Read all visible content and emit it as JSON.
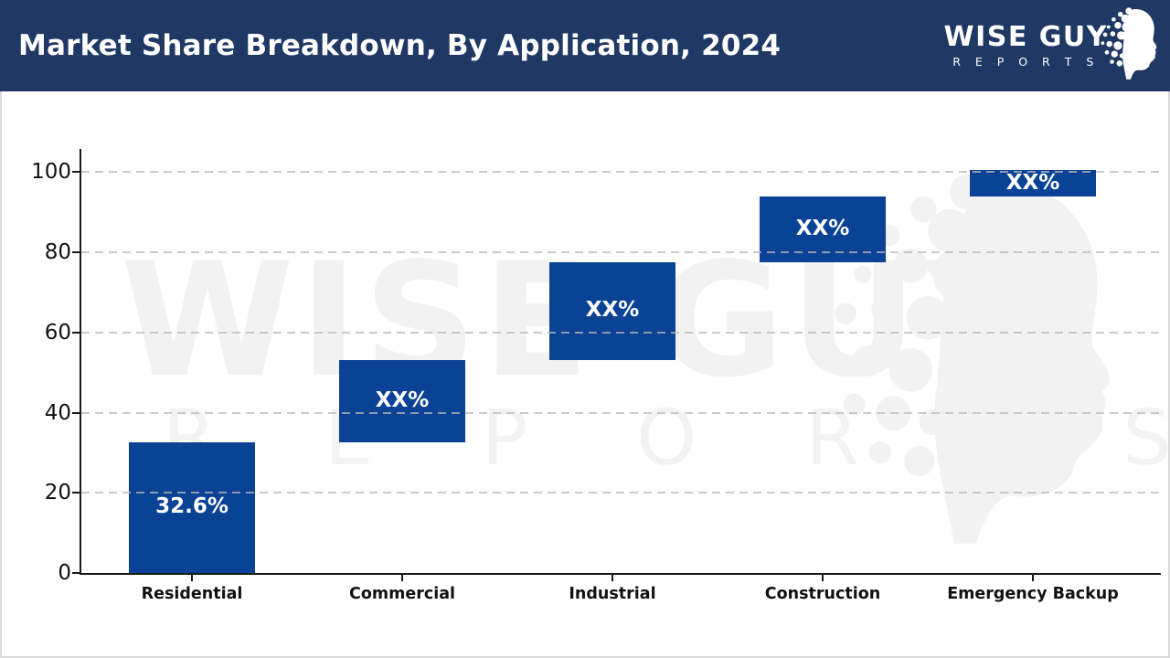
{
  "page": {
    "background": "#ffffff",
    "border_color": "#d9d9d9"
  },
  "header": {
    "background": "#1f3864",
    "title": "Market Share Breakdown, By Application, 2024",
    "logo": {
      "wordmark": "WISE GUY",
      "reports": "R E P O R T S"
    }
  },
  "watermark": {
    "wordmark": "WISE GUY",
    "reports": "R E P O R T S"
  },
  "chart_data": {
    "type": "bar",
    "variant": "waterfall-floating-segments",
    "title": "Market Share Breakdown, By Application, 2024",
    "categories": [
      "Residential",
      "Commercial",
      "Industrial",
      "Construction",
      "Emergency Backup"
    ],
    "segments": [
      {
        "category": "Residential",
        "start": 0,
        "end": 32.6,
        "label": "32.6%"
      },
      {
        "category": "Commercial",
        "start": 32.6,
        "end": 53.2,
        "label": "XX%"
      },
      {
        "category": "Industrial",
        "start": 53.2,
        "end": 77.6,
        "label": "XX%"
      },
      {
        "category": "Construction",
        "start": 77.6,
        "end": 93.8,
        "label": "XX%"
      },
      {
        "category": "Emergency Backup",
        "start": 93.8,
        "end": 100.5,
        "label": "XX%"
      }
    ],
    "y_ticks": [
      0,
      20,
      40,
      60,
      80,
      100
    ],
    "ylim": [
      0,
      105.7
    ],
    "xlabel": "",
    "ylabel": "",
    "grid": "horizontal-dashed",
    "legend": "none",
    "bar_color": "#0a4296",
    "bar_label_color": "#ffffff",
    "axis_color": "#000000",
    "gridline_color": "#d8d8d8"
  }
}
